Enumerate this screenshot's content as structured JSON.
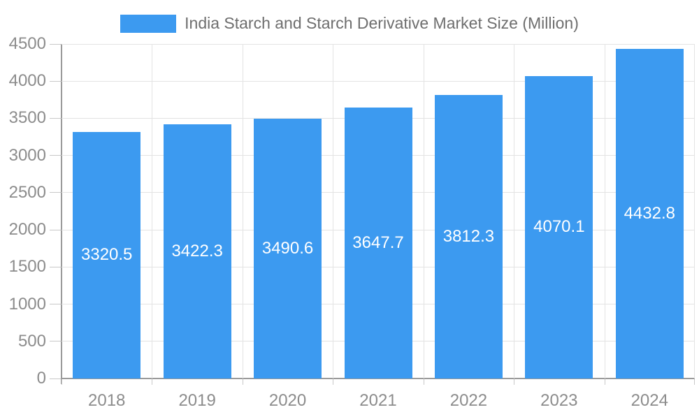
{
  "chart_data": {
    "type": "bar",
    "title": "India Starch and Starch Derivative Market Size (Million)",
    "legend": {
      "position": "top",
      "label": "India Starch and Starch Derivative Market Size (Million)"
    },
    "categories": [
      "2018",
      "2019",
      "2020",
      "2021",
      "2022",
      "2023",
      "2024"
    ],
    "values": [
      3320.5,
      3422.3,
      3490.6,
      3647.7,
      3812.3,
      4070.1,
      4432.8
    ],
    "value_label_position": "inside-center",
    "xlabel": "",
    "ylabel": "",
    "ylim": [
      0,
      4500
    ],
    "ytick_step": 500,
    "grid": "both",
    "colors": {
      "bar": "#3c9af0",
      "axis_line": "#9a9a9a",
      "gridline": "#e3e3e3",
      "tick_mark": "#c8c8c8",
      "axis_text": "#8c8c8c",
      "legend_text": "#6e6e6e",
      "value_label_text": "#ffffff",
      "background": "#ffffff"
    }
  }
}
